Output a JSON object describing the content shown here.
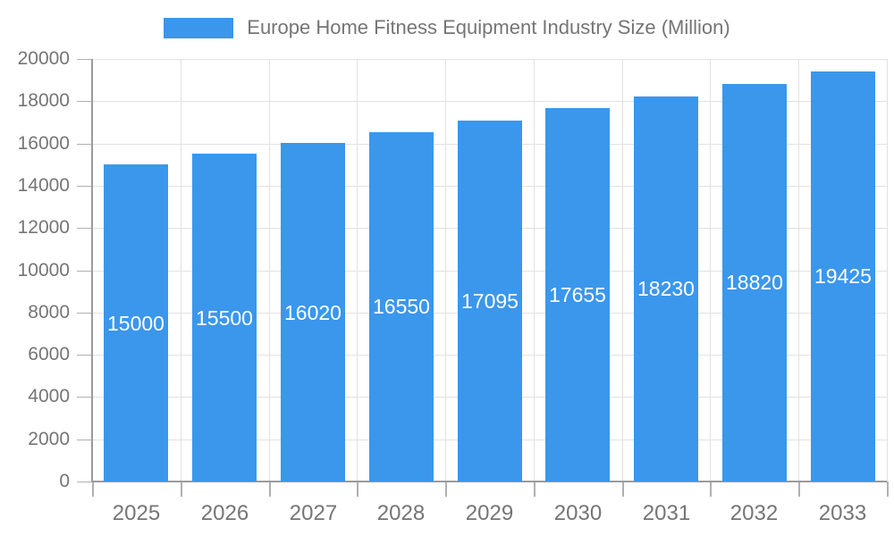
{
  "chart_data": {
    "type": "bar",
    "title": "Europe Home Fitness Equipment Industry Size (Million)",
    "categories": [
      "2025",
      "2026",
      "2027",
      "2028",
      "2029",
      "2030",
      "2031",
      "2032",
      "2033"
    ],
    "values": [
      15000,
      15500,
      16020,
      16550,
      17095,
      17655,
      18230,
      18820,
      19425
    ],
    "bar_value_labels": [
      "15000",
      "15500",
      "16020",
      "16550",
      "17095",
      "17655",
      "18230",
      "18820",
      "19425"
    ],
    "xlabel": "",
    "ylabel": "",
    "ylim": [
      0,
      20000
    ],
    "ytick_step": 2000,
    "ytick_labels": [
      "0",
      "2000",
      "4000",
      "6000",
      "8000",
      "10000",
      "12000",
      "14000",
      "16000",
      "18000",
      "20000"
    ],
    "grid": true,
    "legend": {
      "position": "top",
      "label": "Europe Home Fitness Equipment Industry Size (Million)"
    },
    "colors": {
      "bar": "#3A97EC",
      "grid": "#E2E2E2",
      "axis": "#9B9B9B",
      "tick": "#B0B0B0",
      "tick_label": "#757575",
      "value_label": "#FFFFFF"
    }
  }
}
